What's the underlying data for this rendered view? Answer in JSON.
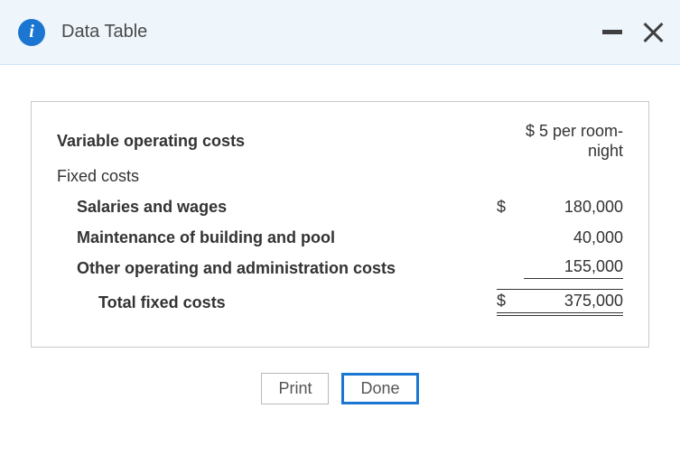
{
  "header": {
    "title": "Data Table"
  },
  "table": {
    "variable_label": "Variable operating costs",
    "variable_value_line1": "$ 5 per room-",
    "variable_value_line2": "night",
    "fixed_label": "Fixed costs",
    "rows": [
      {
        "label": "Salaries and wages",
        "currency": "$",
        "value": "180,000"
      },
      {
        "label": "Maintenance of building and pool",
        "currency": "",
        "value": "40,000"
      },
      {
        "label": "Other operating and administration costs",
        "currency": "",
        "value": "155,000"
      }
    ],
    "total_label": "Total fixed costs",
    "total_currency": "$",
    "total_value": "375,000"
  },
  "buttons": {
    "print": "Print",
    "done": "Done"
  },
  "colors": {
    "header_bg": "#eef5fb",
    "header_border": "#cfe4f5",
    "accent": "#1b76d2",
    "text": "#3a3a3a",
    "box_border": "#c9c9c9"
  }
}
